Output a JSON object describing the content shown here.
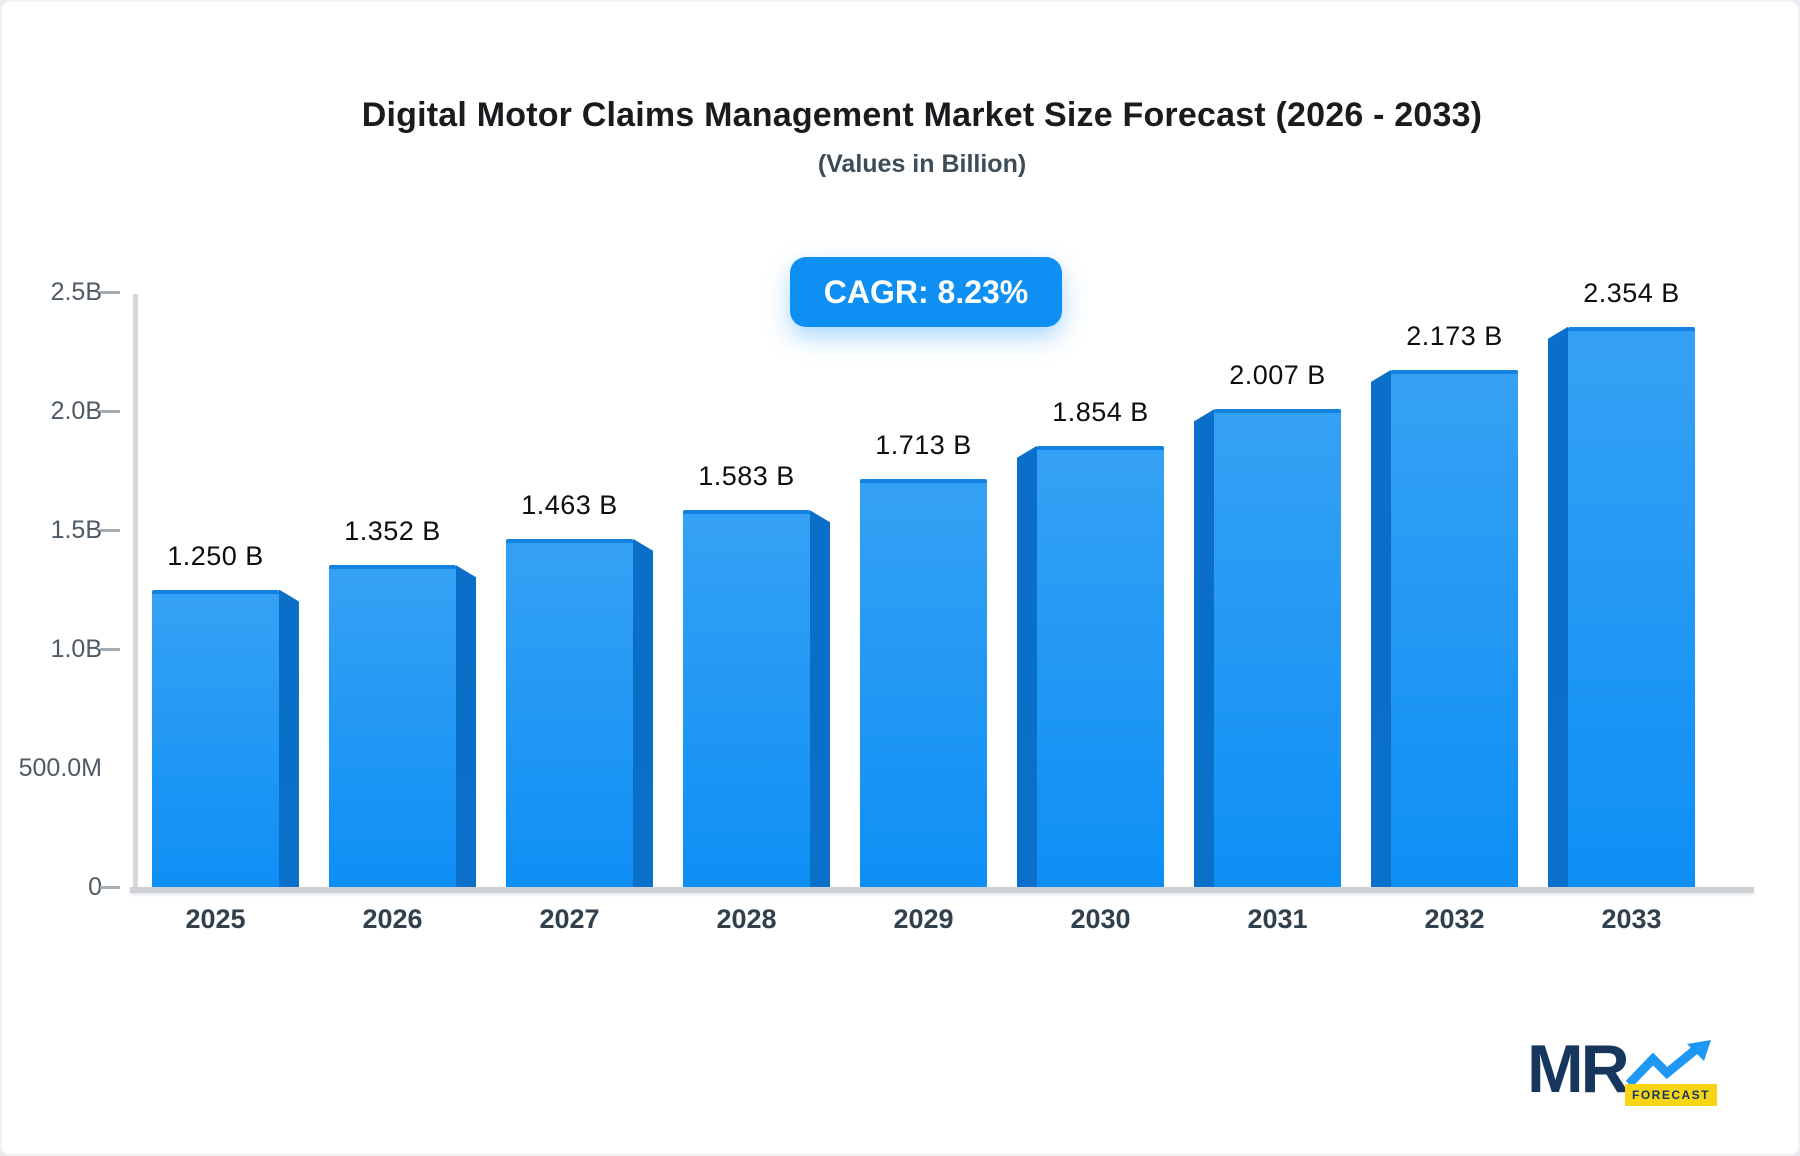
{
  "header": {
    "title": "Digital Motor Claims Management Market Size Forecast (2026 - 2033)",
    "subtitle": "(Values in Billion)",
    "cagr_badge": "CAGR: 8.23%"
  },
  "chart_data": {
    "type": "bar",
    "title": "Digital Motor Claims Management Market Size Forecast (2026 - 2033)",
    "subtitle": "(Values in Billion)",
    "cagr": "8.23%",
    "categories": [
      "2025",
      "2026",
      "2027",
      "2028",
      "2029",
      "2030",
      "2031",
      "2032",
      "2033"
    ],
    "values": [
      1.25,
      1.352,
      1.463,
      1.583,
      1.713,
      1.854,
      2.007,
      2.173,
      2.354
    ],
    "value_labels": [
      "1.250 B",
      "1.352 B",
      "1.463 B",
      "1.583 B",
      "1.713 B",
      "1.854 B",
      "2.007 B",
      "2.173 B",
      "2.354 B"
    ],
    "xlabel": "",
    "ylabel": "",
    "ylim": [
      0,
      2.5
    ],
    "y_ticks": [
      {
        "label": "2.5B",
        "value": 2.5,
        "dash": true
      },
      {
        "label": "2.0B",
        "value": 2.0,
        "dash": true
      },
      {
        "label": "1.5B",
        "value": 1.5,
        "dash": true
      },
      {
        "label": "1.0B",
        "value": 1.0,
        "dash": true
      },
      {
        "label": "500.0M",
        "value": 0.5,
        "dash": false
      },
      {
        "label": "0",
        "value": 0.0,
        "dash": true
      }
    ],
    "grid": false,
    "legend": "none",
    "bar_style": "3d-perspective"
  },
  "colors": {
    "bar_top": "#35a1f4",
    "bar_bottom": "#0e8ff5",
    "bar_cap": "#1282e2",
    "bar_side": "#0a6ec6",
    "badge_bg": "#0e8ff4",
    "logo_navy": "#17365e",
    "logo_yellow": "#f7d514",
    "axis_gray": "#ced2d6"
  },
  "logo": {
    "text": "MR",
    "sub_text": "FORECAST"
  }
}
